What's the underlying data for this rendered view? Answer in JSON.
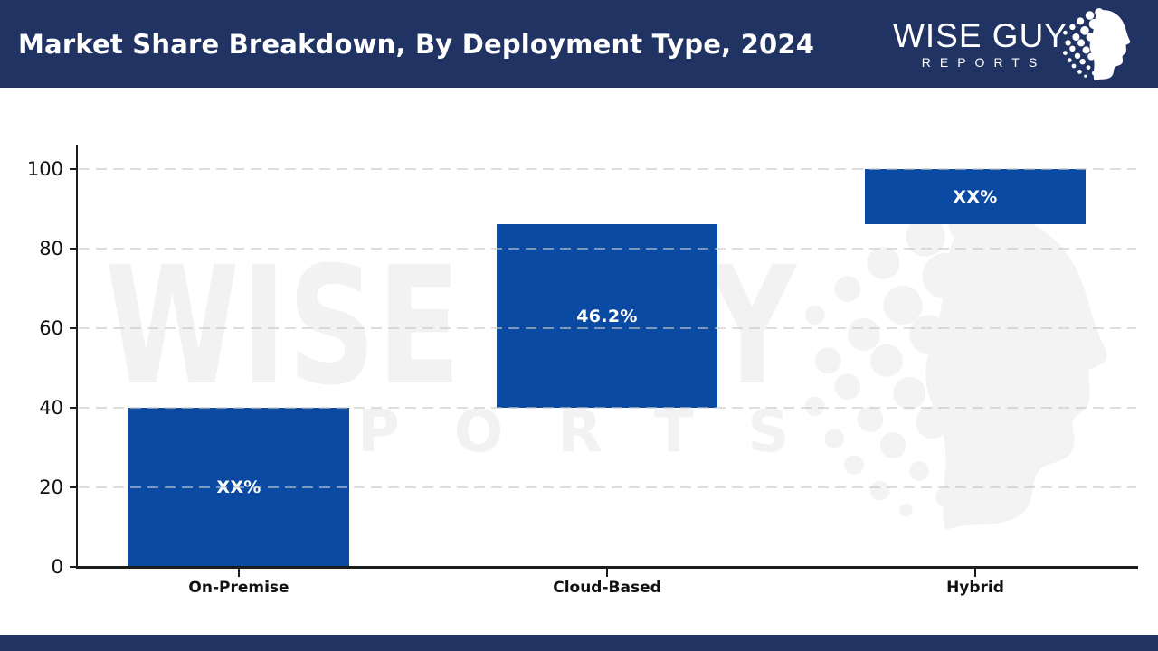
{
  "header": {
    "title": "Market Share Breakdown, By Deployment Type, 2024"
  },
  "logo": {
    "line1": "WISE GUY",
    "line2": "REPORTS"
  },
  "watermark": {
    "line1": "WISE GUY",
    "line2": "REPORTS"
  },
  "colors": {
    "header_bg": "#213363",
    "footer_bg": "#213363",
    "bar": "#0b4aa2",
    "axis": "#1c1c1c",
    "grid": "#cccccc",
    "bar_label": "#ffffff",
    "watermark": "#f2f2f2"
  },
  "chart_data": {
    "type": "bar",
    "subtype": "waterfall",
    "title": "Market Share Breakdown, By Deployment Type, 2024",
    "categories": [
      "On-Premise",
      "Cloud-Based",
      "Hybrid"
    ],
    "bars": [
      {
        "category": "On-Premise",
        "start": 0,
        "end": 40,
        "label": "XX%"
      },
      {
        "category": "Cloud-Based",
        "start": 40,
        "end": 86.2,
        "label": "46.2%"
      },
      {
        "category": "Hybrid",
        "start": 86.2,
        "end": 100,
        "label": "XX%"
      }
    ],
    "ylim": [
      0,
      100
    ],
    "yticks": [
      0,
      20,
      40,
      60,
      80,
      100
    ],
    "grid": "dashed-horizontal",
    "legend": false
  }
}
